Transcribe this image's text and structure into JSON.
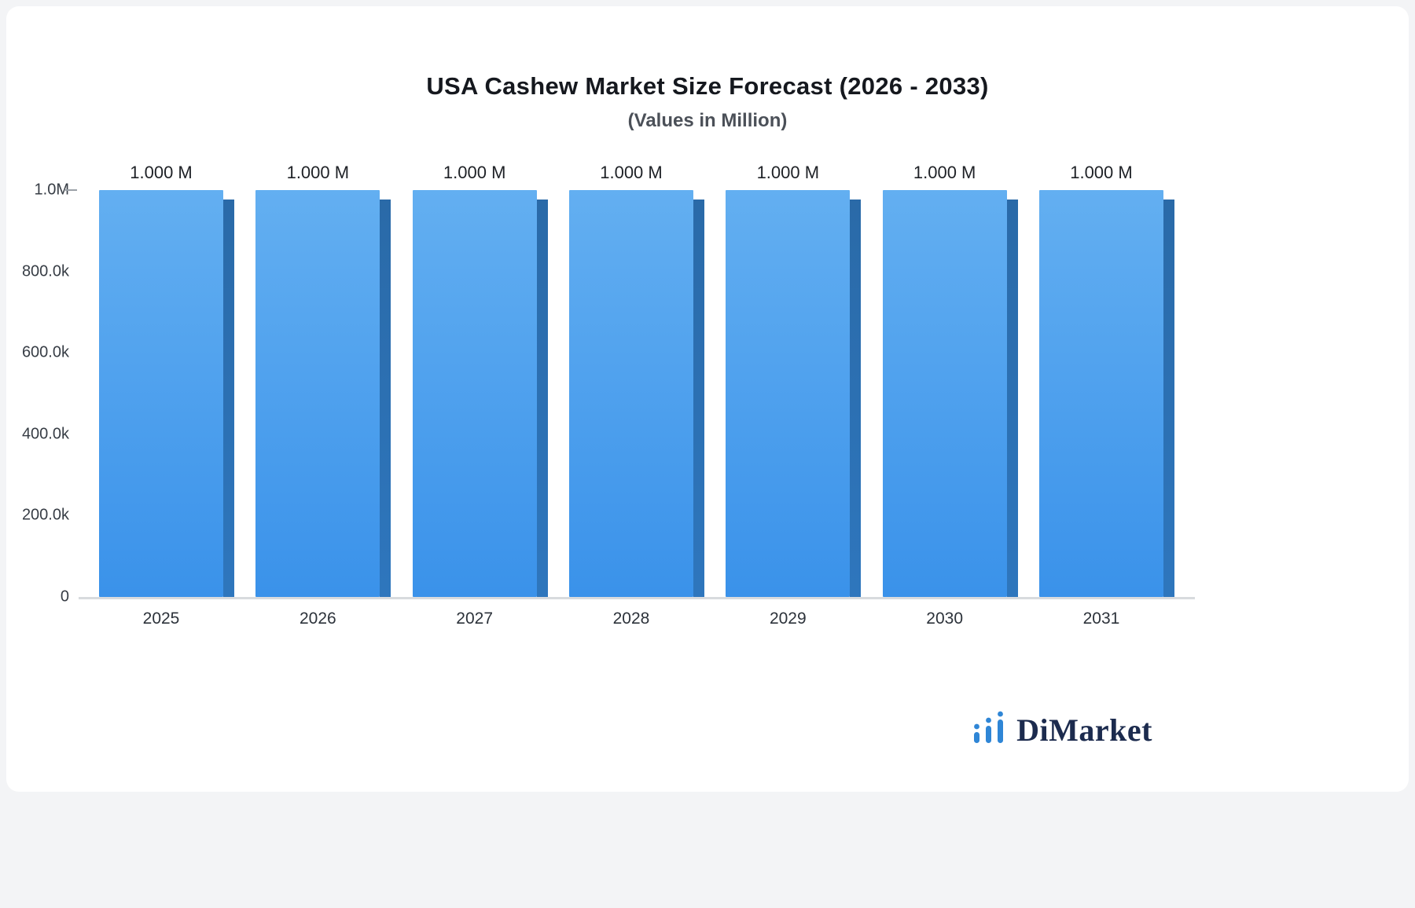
{
  "page": {
    "background_color": "#f3f4f6",
    "card_background_color": "#ffffff"
  },
  "chart_data": {
    "type": "bar",
    "title": "USA Cashew Market Size Forecast (2026 - 2033)",
    "subtitle": "(Values in Million)",
    "categories": [
      "2025",
      "2026",
      "2027",
      "2028",
      "2029",
      "2030",
      "2031"
    ],
    "values": [
      1000000,
      1000000,
      1000000,
      1000000,
      1000000,
      1000000,
      1000000
    ],
    "bar_value_labels": [
      "1.000 M",
      "1.000 M",
      "1.000 M",
      "1.000 M",
      "1.000 M",
      "1.000 M",
      "1.000 M"
    ],
    "xlabel": "",
    "ylabel": "",
    "ylim": [
      0,
      1000000
    ],
    "y_ticks": [
      {
        "value": 1000000,
        "label": "1.0M",
        "tick_mark": true
      },
      {
        "value": 800000,
        "label": "800.0k",
        "tick_mark": false
      },
      {
        "value": 600000,
        "label": "600.0k",
        "tick_mark": false
      },
      {
        "value": 400000,
        "label": "400.0k",
        "tick_mark": false
      },
      {
        "value": 200000,
        "label": "200.0k",
        "tick_mark": false
      },
      {
        "value": 0,
        "label": "0",
        "tick_mark": false
      }
    ],
    "grid": false,
    "legend": false,
    "bar_colors": {
      "fill_top": "#63AFF1",
      "fill_bottom": "#3A92EA",
      "side_top": "#2A6AA8",
      "side_bottom": "#2E76BD"
    },
    "axis_line_color": "#d8dbde"
  },
  "branding": {
    "logo_text": "DiMarket",
    "logo_text_color": "#1c2b4e",
    "logo_icon": "bar-chart-logo-icon",
    "logo_icon_color": "#2F86D6"
  }
}
